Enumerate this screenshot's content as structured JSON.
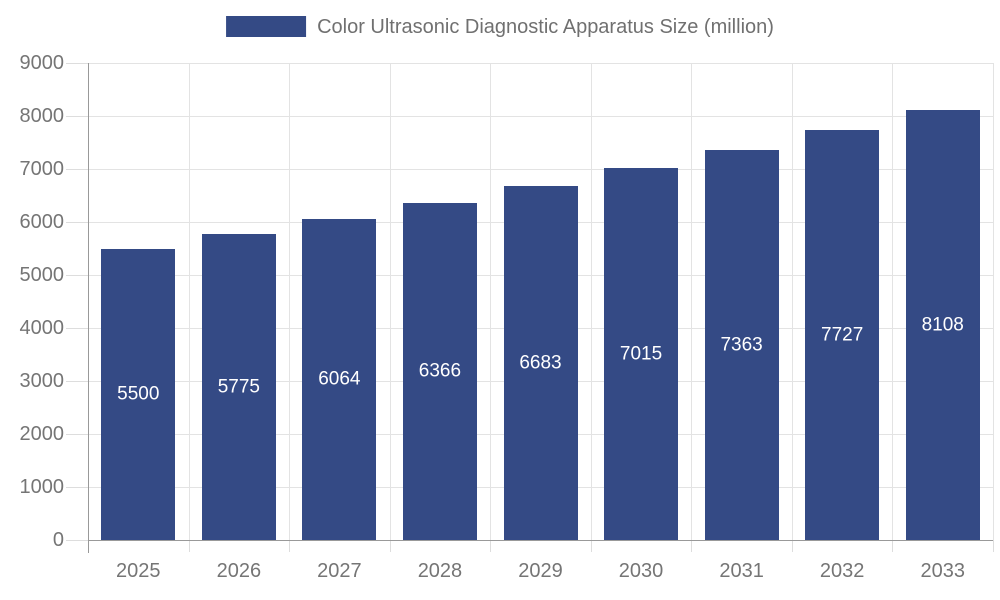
{
  "legend": {
    "label": "Color Ultrasonic Diagnostic Apparatus Size (million)"
  },
  "chart_data": {
    "type": "bar",
    "title": "Color Ultrasonic Diagnostic Apparatus Size (million)",
    "categories": [
      "2025",
      "2026",
      "2027",
      "2028",
      "2029",
      "2030",
      "2031",
      "2032",
      "2033"
    ],
    "values": [
      5500,
      5775,
      6064,
      6366,
      6683,
      7015,
      7363,
      7727,
      8108
    ],
    "series_name": "Color Ultrasonic Diagnostic Apparatus Size (million)",
    "xlabel": "",
    "ylabel": "",
    "ylim": [
      0,
      9000
    ],
    "yticks": [
      0,
      1000,
      2000,
      3000,
      4000,
      5000,
      6000,
      7000,
      8000,
      9000
    ],
    "grid": true,
    "legend_position": "top",
    "value_labels": "inside-center",
    "colors": {
      "bar": "#344a85",
      "value_label": "#ffffff",
      "axis_text": "#757575",
      "legend_text": "#707070",
      "grid_line": "#e3e3e3",
      "tick_line": "#dddddd",
      "axis_line": "#999999"
    }
  }
}
